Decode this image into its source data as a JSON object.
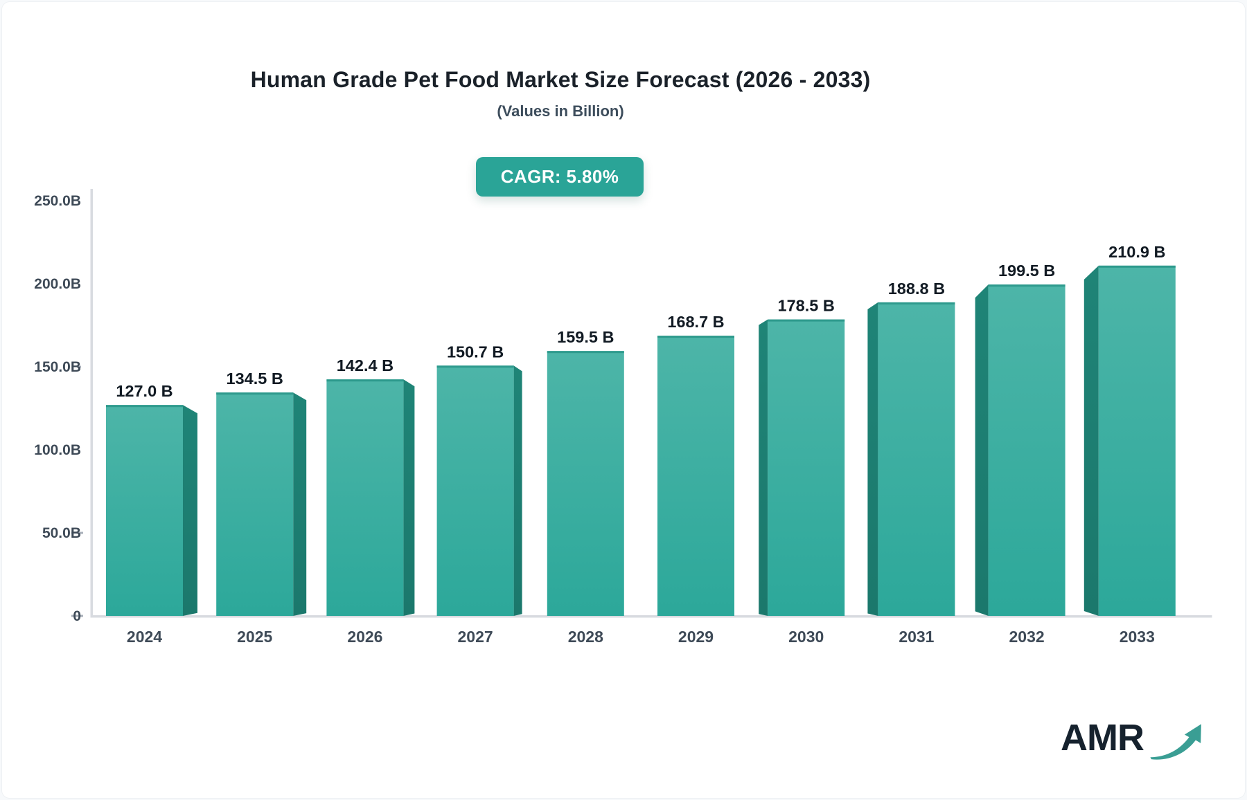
{
  "header": {
    "title": "Human Grade Pet Food Market Size Forecast (2026 - 2033)",
    "subtitle": "(Values in Billion)",
    "cagr_badge": "CAGR: 5.80%"
  },
  "chart_data": {
    "type": "bar",
    "title": "Human Grade Pet Food Market Size Forecast (2026 - 2033)",
    "subtitle": "(Values in Billion)",
    "cagr_label": "CAGR: 5.80%",
    "categories": [
      "2024",
      "2025",
      "2026",
      "2027",
      "2028",
      "2029",
      "2030",
      "2031",
      "2032",
      "2033"
    ],
    "values": [
      127.0,
      134.5,
      142.4,
      150.7,
      159.5,
      168.7,
      178.5,
      188.8,
      199.5,
      210.9
    ],
    "value_labels": [
      "127.0 B",
      "134.5 B",
      "142.4 B",
      "150.7 B",
      "159.5 B",
      "168.7 B",
      "178.5 B",
      "188.8 B",
      "199.5 B",
      "210.9 B"
    ],
    "y_ticks": [
      "250.0B",
      "200.0B",
      "150.0B",
      "100.0B",
      "50.0B",
      "0"
    ],
    "ylim": [
      0,
      250
    ],
    "xlabel": "",
    "ylabel": "",
    "grid": false,
    "legend": "none",
    "bar_style": "3d",
    "colors": {
      "bar_face_top": "#4DB5A8",
      "bar_face_bottom": "#2CA89A",
      "bar_side": "#1E8073",
      "bar_top_edge": "#2E9A8D",
      "axis_line": "#D8DBE0",
      "tick_mark": "#A9B0BA",
      "axis_label": "#3E4A57",
      "value_label": "#111A23",
      "accent": "#2AA497"
    }
  },
  "logo": {
    "text": "AMR",
    "text_color": "#16222E",
    "arrow_color": "#3A9E94"
  }
}
